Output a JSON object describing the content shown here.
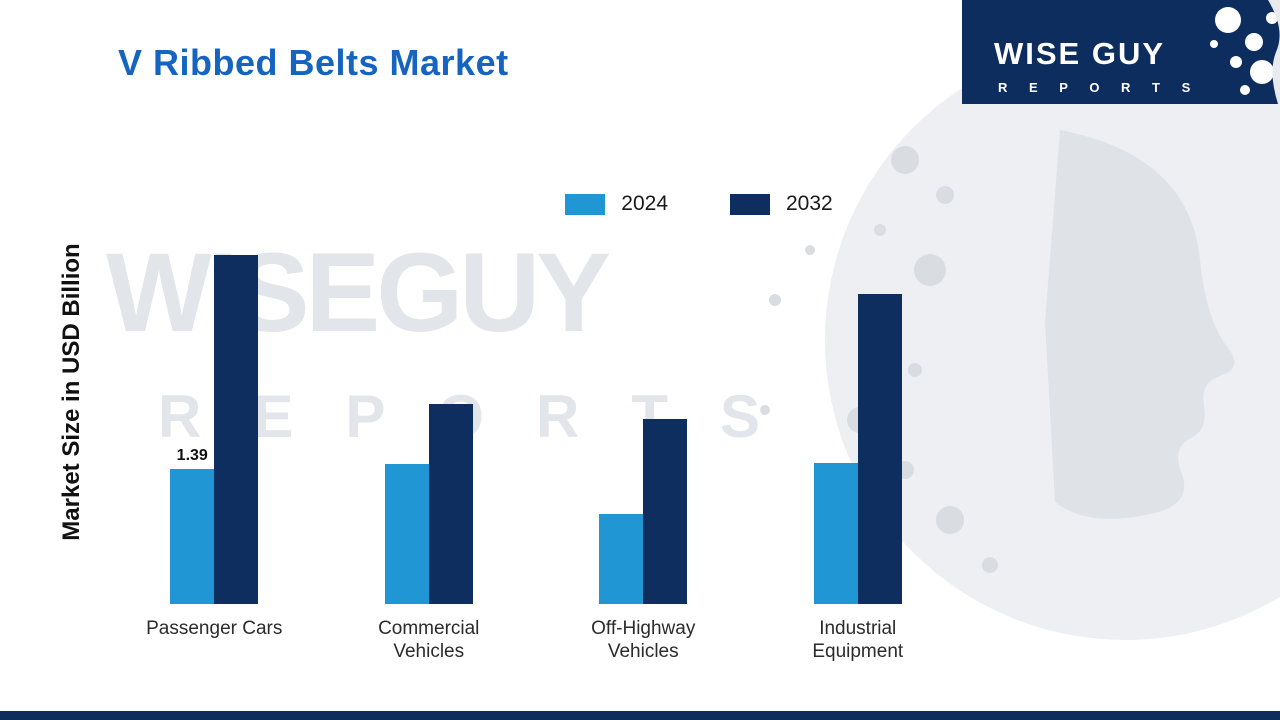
{
  "page": {
    "title": "V Ribbed Belts Market"
  },
  "brand": {
    "navy": "#0d2d5e",
    "light_blue": "#2096d5",
    "title_blue": "#1565c0"
  },
  "logo": {
    "line1": "WISE GUY",
    "line2": "R E P O R T S"
  },
  "watermark": {
    "line1": "WISEGUY",
    "line2": "REPORTS"
  },
  "chart_data": {
    "type": "bar",
    "title": "V Ribbed Belts Market",
    "ylabel": "Market Size in USD Billion",
    "categories": [
      "Passenger Cars",
      "Commercial Vehicles",
      "Off-Highway Vehicles",
      "Industrial Equipment"
    ],
    "series": [
      {
        "name": "2024",
        "color": "#2096d5",
        "values": [
          1.39,
          1.44,
          0.93,
          1.45
        ]
      },
      {
        "name": "2032",
        "color": "#0e2e60",
        "values": [
          3.6,
          2.06,
          1.91,
          3.2
        ]
      }
    ],
    "annotations": [
      {
        "category_index": 0,
        "series_index": 0,
        "text": "1.39"
      }
    ],
    "ylim": [
      0,
      4
    ],
    "grid": false,
    "axes_hidden": true,
    "legend_position": "top-center"
  }
}
